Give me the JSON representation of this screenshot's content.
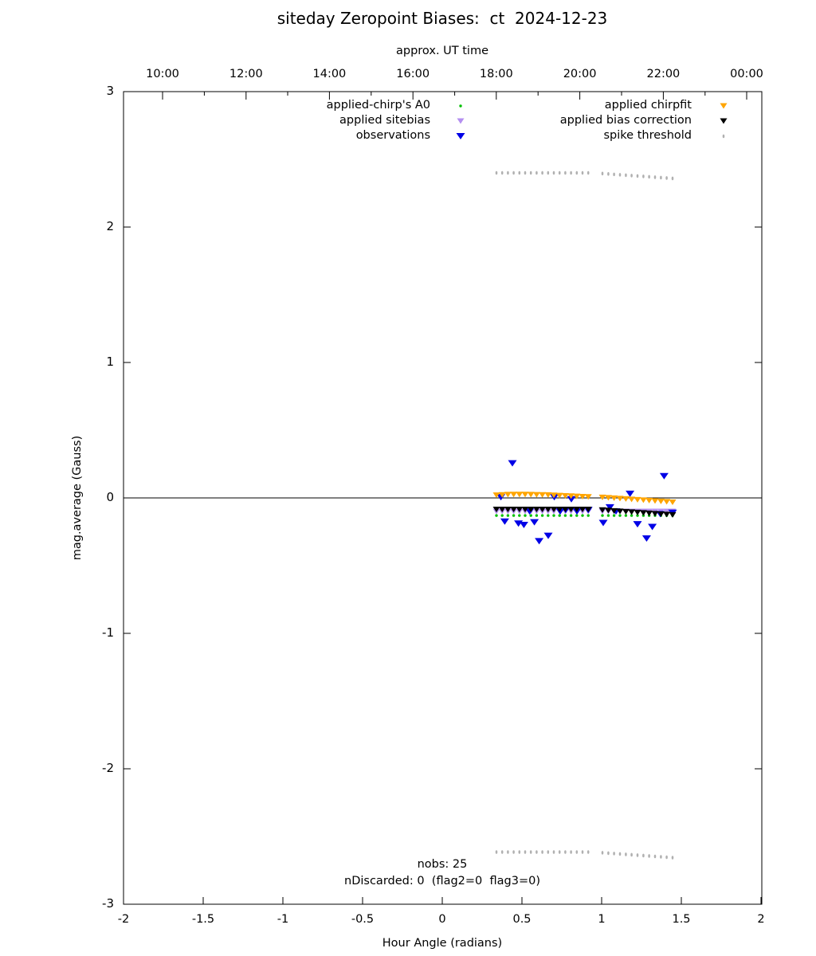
{
  "title": "siteday Zeropoint Biases:  ct  2024-12-23",
  "chart_data": {
    "type": "scatter",
    "title": "siteday Zeropoint Biases:  ct  2024-12-23",
    "top_axis": {
      "label": "approx. UT time",
      "major_ticks": [
        {
          "label": "10:00",
          "ha": -1.755
        },
        {
          "label": "12:00",
          "ha": -1.231
        },
        {
          "label": "14:00",
          "ha": -0.708
        },
        {
          "label": "16:00",
          "ha": -0.184
        },
        {
          "label": "18:00",
          "ha": 0.339
        },
        {
          "label": "20:00",
          "ha": 0.863
        },
        {
          "label": "22:00",
          "ha": 1.387
        },
        {
          "label": "00:00",
          "ha": 1.91
        }
      ],
      "minor_ticks_ha": [
        -1.493,
        -0.97,
        -0.446,
        0.078,
        0.601,
        1.125,
        1.649
      ]
    },
    "x_axis": {
      "label": "Hour Angle (radians)",
      "range": [
        -2,
        2
      ],
      "ticks": [
        -2,
        -1.5,
        -1,
        -0.5,
        0,
        0.5,
        1,
        1.5,
        2
      ]
    },
    "y_axis": {
      "label": "mag.average (Gauss)",
      "range": [
        -3,
        3
      ],
      "ticks": [
        3,
        2,
        1,
        0,
        -1,
        -2,
        -3
      ]
    },
    "zero_line": true,
    "grid": false,
    "annotations": {
      "nobs": "nobs: 25",
      "ndiscarded": "nDiscarded: 0  (flag2=0  flag3=0)"
    },
    "legend_columns": [
      [
        "applied-chirp's A0",
        "applied sitebias",
        "observations"
      ],
      [
        "applied chirpfit",
        "applied bias correction",
        "spike threshold"
      ]
    ],
    "marker_ha": [
      0.34,
      0.376,
      0.412,
      0.448,
      0.484,
      0.52,
      0.556,
      0.592,
      0.628,
      0.664,
      0.7,
      0.736,
      0.772,
      0.808,
      0.844,
      0.88,
      0.916,
      1.005,
      1.042,
      1.078,
      1.115,
      1.152,
      1.188,
      1.225,
      1.262,
      1.298,
      1.335,
      1.372,
      1.408,
      1.445
    ],
    "series": [
      {
        "name": "applied-chirp's A0",
        "marker": "dot",
        "color": "#00c000",
        "values": [
          -0.13,
          -0.13,
          -0.13,
          -0.13,
          -0.13,
          -0.13,
          -0.13,
          -0.13,
          -0.13,
          -0.13,
          -0.13,
          -0.13,
          -0.13,
          -0.13,
          -0.13,
          -0.13,
          -0.13,
          -0.13,
          -0.13,
          -0.13,
          -0.13,
          -0.13,
          -0.13,
          -0.13,
          -0.13,
          -0.13,
          -0.13,
          -0.13,
          -0.13,
          -0.13
        ]
      },
      {
        "name": "applied sitebias",
        "marker": "triangle-down",
        "color": "#b48ff0",
        "values": [
          -0.1,
          -0.1,
          -0.1,
          -0.1,
          -0.1,
          -0.1,
          -0.1,
          -0.1,
          -0.1,
          -0.1,
          -0.1,
          -0.1,
          -0.1,
          -0.1,
          -0.1,
          -0.1,
          -0.1,
          -0.1,
          -0.1,
          -0.1,
          -0.1,
          -0.1,
          -0.1,
          -0.1,
          -0.1,
          -0.1,
          -0.1,
          -0.1,
          -0.1,
          -0.1
        ]
      },
      {
        "name": "observations",
        "marker": "triangle-down",
        "color": "#0000e6",
        "points": [
          [
            0.368,
            0.005
          ],
          [
            0.392,
            -0.175
          ],
          [
            0.44,
            0.255
          ],
          [
            0.478,
            -0.19
          ],
          [
            0.512,
            -0.2
          ],
          [
            0.548,
            -0.1
          ],
          [
            0.578,
            -0.18
          ],
          [
            0.608,
            -0.32
          ],
          [
            0.665,
            -0.28
          ],
          [
            0.703,
            0.005
          ],
          [
            0.74,
            -0.1
          ],
          [
            0.775,
            -0.09
          ],
          [
            0.81,
            -0.01
          ],
          [
            0.845,
            -0.1
          ],
          [
            0.916,
            -0.09
          ],
          [
            1.01,
            -0.185
          ],
          [
            1.052,
            -0.07
          ],
          [
            1.09,
            -0.1
          ],
          [
            1.178,
            0.03
          ],
          [
            1.225,
            -0.195
          ],
          [
            1.282,
            -0.3
          ],
          [
            1.318,
            -0.215
          ],
          [
            1.368,
            -0.12
          ],
          [
            1.392,
            0.16
          ],
          [
            1.445,
            -0.11
          ]
        ]
      },
      {
        "name": "applied chirpfit",
        "marker": "triangle-down",
        "color": "#ffa500",
        "values": [
          0.02,
          0.022,
          0.024,
          0.025,
          0.025,
          0.025,
          0.024,
          0.023,
          0.022,
          0.021,
          0.019,
          0.017,
          0.015,
          0.013,
          0.011,
          0.009,
          0.007,
          0.004,
          0.001,
          -0.002,
          -0.005,
          -0.008,
          -0.011,
          -0.014,
          -0.017,
          -0.02,
          -0.023,
          -0.026,
          -0.029,
          -0.032
        ]
      },
      {
        "name": "applied bias correction",
        "marker": "triangle-down",
        "color": "#000000",
        "values": [
          -0.085,
          -0.085,
          -0.085,
          -0.085,
          -0.085,
          -0.085,
          -0.085,
          -0.085,
          -0.085,
          -0.085,
          -0.085,
          -0.085,
          -0.085,
          -0.085,
          -0.085,
          -0.085,
          -0.085,
          -0.09,
          -0.093,
          -0.096,
          -0.099,
          -0.102,
          -0.105,
          -0.108,
          -0.111,
          -0.114,
          -0.117,
          -0.12,
          -0.123,
          -0.126
        ]
      },
      {
        "name": "spike threshold",
        "marker": "vdot",
        "color": "#b0b0b0",
        "points": [
          [
            0.34,
            2.4
          ],
          [
            0.376,
            2.4
          ],
          [
            0.412,
            2.4
          ],
          [
            0.448,
            2.4
          ],
          [
            0.484,
            2.4
          ],
          [
            0.52,
            2.4
          ],
          [
            0.556,
            2.4
          ],
          [
            0.592,
            2.4
          ],
          [
            0.628,
            2.4
          ],
          [
            0.664,
            2.4
          ],
          [
            0.7,
            2.4
          ],
          [
            0.736,
            2.4
          ],
          [
            0.772,
            2.4
          ],
          [
            0.808,
            2.4
          ],
          [
            0.844,
            2.4
          ],
          [
            0.88,
            2.4
          ],
          [
            0.916,
            2.4
          ],
          [
            1.005,
            2.395
          ],
          [
            1.042,
            2.392
          ],
          [
            1.078,
            2.389
          ],
          [
            1.115,
            2.386
          ],
          [
            1.152,
            2.383
          ],
          [
            1.188,
            2.38
          ],
          [
            1.225,
            2.377
          ],
          [
            1.262,
            2.374
          ],
          [
            1.298,
            2.371
          ],
          [
            1.335,
            2.368
          ],
          [
            1.372,
            2.365
          ],
          [
            1.408,
            2.362
          ],
          [
            1.445,
            2.359
          ],
          [
            0.34,
            -2.615
          ],
          [
            0.376,
            -2.615
          ],
          [
            0.412,
            -2.615
          ],
          [
            0.448,
            -2.615
          ],
          [
            0.484,
            -2.615
          ],
          [
            0.52,
            -2.615
          ],
          [
            0.556,
            -2.615
          ],
          [
            0.592,
            -2.615
          ],
          [
            0.628,
            -2.615
          ],
          [
            0.664,
            -2.615
          ],
          [
            0.7,
            -2.615
          ],
          [
            0.736,
            -2.615
          ],
          [
            0.772,
            -2.615
          ],
          [
            0.808,
            -2.615
          ],
          [
            0.844,
            -2.615
          ],
          [
            0.88,
            -2.615
          ],
          [
            0.916,
            -2.615
          ],
          [
            1.005,
            -2.62
          ],
          [
            1.042,
            -2.623
          ],
          [
            1.078,
            -2.626
          ],
          [
            1.115,
            -2.629
          ],
          [
            1.152,
            -2.632
          ],
          [
            1.188,
            -2.635
          ],
          [
            1.225,
            -2.638
          ],
          [
            1.262,
            -2.641
          ],
          [
            1.298,
            -2.644
          ],
          [
            1.335,
            -2.647
          ],
          [
            1.372,
            -2.65
          ],
          [
            1.408,
            -2.653
          ],
          [
            1.445,
            -2.656
          ]
        ]
      }
    ]
  }
}
